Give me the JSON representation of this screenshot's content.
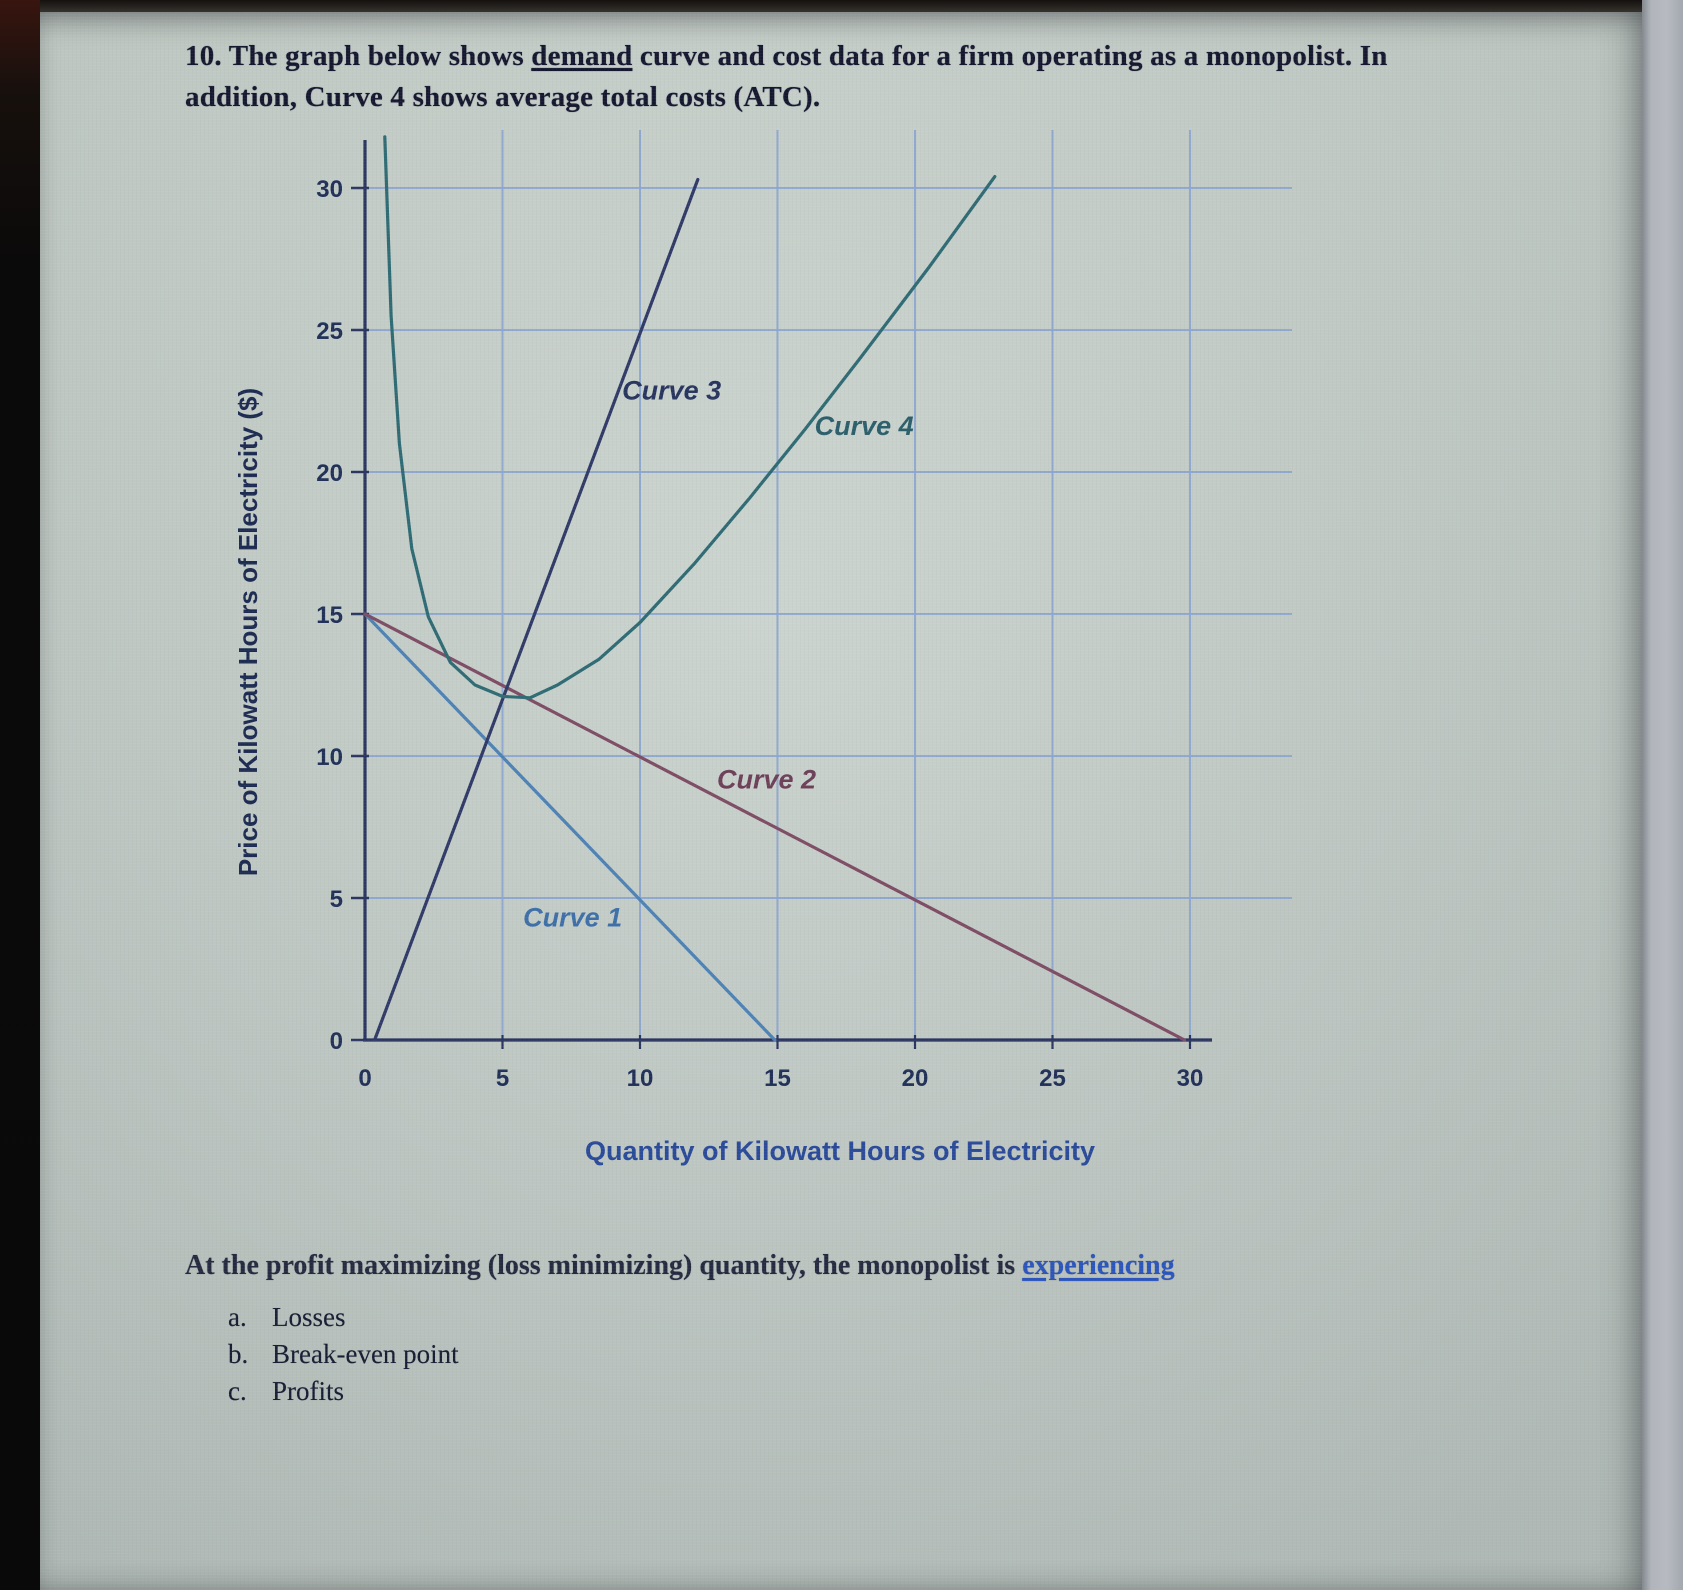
{
  "title": {
    "seg1": "10. The graph below shows ",
    "seg2_underlined": "demand",
    "seg3": " curve and cost data for a firm operating as a monopolist. In",
    "seg4": "addition, Curve 4 shows average total costs (ATC)."
  },
  "followup": {
    "seg1": "At the profit maximizing (loss minimizing) quantity, the monopolist is ",
    "seg2_underlined": "experiencing"
  },
  "options": [
    {
      "letter": "a.",
      "text": "Losses"
    },
    {
      "letter": "b.",
      "text": "Break-even point"
    },
    {
      "letter": "c.",
      "text": "Profits"
    }
  ],
  "chart_data": {
    "type": "line",
    "title": "",
    "xlabel": "Quantity of Kilowatt Hours of Electricity",
    "ylabel": "Price of Kilowatt Hours of Electricity ($)",
    "xlim": [
      0,
      30
    ],
    "ylim": [
      0,
      30
    ],
    "xticks": [
      0,
      5,
      10,
      15,
      20,
      25,
      30
    ],
    "yticks": [
      0,
      5,
      10,
      15,
      20,
      25,
      30
    ],
    "grid": true,
    "legend": "labels-on-plot",
    "colors": {
      "grid": "#8aa4cf",
      "axis": "#2a3560",
      "tick_labels": "#203058"
    },
    "series": [
      {
        "name": "Curve 1",
        "color": "#4d82b6",
        "label_color": "#3d6fa8",
        "label_pos": [
          5.75,
          4.0
        ],
        "points": [
          [
            0,
            15
          ],
          [
            14.9,
            0
          ]
        ]
      },
      {
        "name": "Curve 2",
        "color": "#7e4c64",
        "label_color": "#6d3f58",
        "label_pos": [
          12.8,
          8.85
        ],
        "points": [
          [
            0,
            15
          ],
          [
            29.8,
            0
          ]
        ]
      },
      {
        "name": "Curve 3",
        "color": "#303a68",
        "label_color": "#27355f",
        "label_pos": [
          9.35,
          22.55
        ],
        "points": [
          [
            0.35,
            0
          ],
          [
            12.1,
            30.3
          ]
        ]
      },
      {
        "name": "Curve 4",
        "color": "#2e6b74",
        "label_color": "#2a5f6b",
        "label_pos": [
          16.35,
          21.3
        ],
        "points": [
          [
            0.72,
            31.8
          ],
          [
            0.95,
            25.5
          ],
          [
            1.25,
            21.0
          ],
          [
            1.7,
            17.3
          ],
          [
            2.3,
            14.9
          ],
          [
            3.1,
            13.3
          ],
          [
            4.0,
            12.5
          ],
          [
            5.0,
            12.1
          ],
          [
            6.0,
            12.05
          ],
          [
            7.0,
            12.5
          ],
          [
            8.5,
            13.4
          ],
          [
            10.0,
            14.7
          ],
          [
            12.0,
            16.8
          ],
          [
            14.0,
            19.1
          ],
          [
            16.0,
            21.5
          ],
          [
            18.0,
            24.0
          ],
          [
            20.5,
            27.2
          ],
          [
            22.9,
            30.4
          ]
        ]
      }
    ]
  }
}
